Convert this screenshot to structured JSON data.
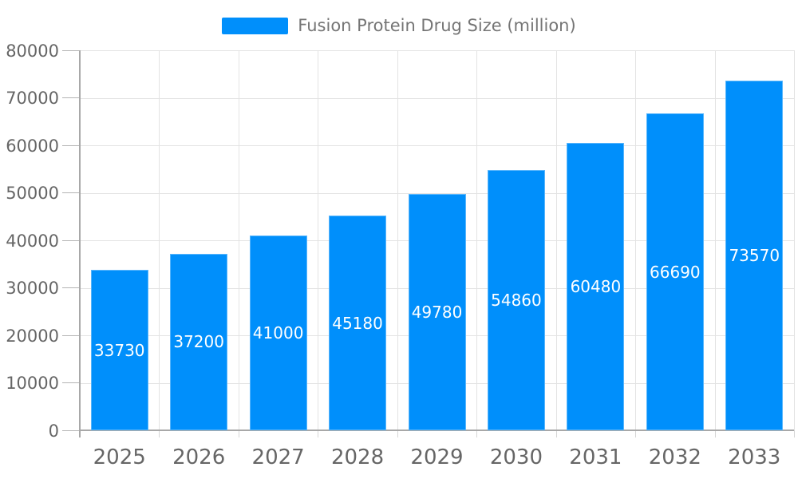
{
  "legend": {
    "label": "Fusion Protein Drug Size (million)",
    "swatch_color": "#008FFB"
  },
  "chart_data": {
    "type": "bar",
    "title": "Fusion Protein Drug Size (million)",
    "series_name": "Fusion Protein Drug Size (million)",
    "categories": [
      "2025",
      "2026",
      "2027",
      "2028",
      "2029",
      "2030",
      "2031",
      "2032",
      "2033"
    ],
    "values": [
      33730,
      37200,
      41000,
      45180,
      49780,
      54860,
      60480,
      66690,
      73570
    ],
    "data_labels": [
      "33730",
      "37200",
      "41000",
      "45180",
      "49780",
      "54860",
      "60480",
      "66690",
      "73570"
    ],
    "xlabel": "",
    "ylabel": "",
    "ylim": [
      0,
      80000
    ],
    "ytick_interval": 10000,
    "ytick_labels": [
      "0",
      "10000",
      "20000",
      "30000",
      "40000",
      "50000",
      "60000",
      "70000",
      "80000"
    ],
    "grid": "both",
    "legend_position": "top",
    "bar_color": "#008FFB",
    "data_label_color": "#ffffff"
  },
  "colors": {
    "bar": "#008FFB",
    "axis_label": "#666666",
    "legend_text": "#757575",
    "gridline": "#e3e3e3",
    "axis_line": "#a8a8a8",
    "background": "#ffffff",
    "data_label": "#ffffff"
  }
}
